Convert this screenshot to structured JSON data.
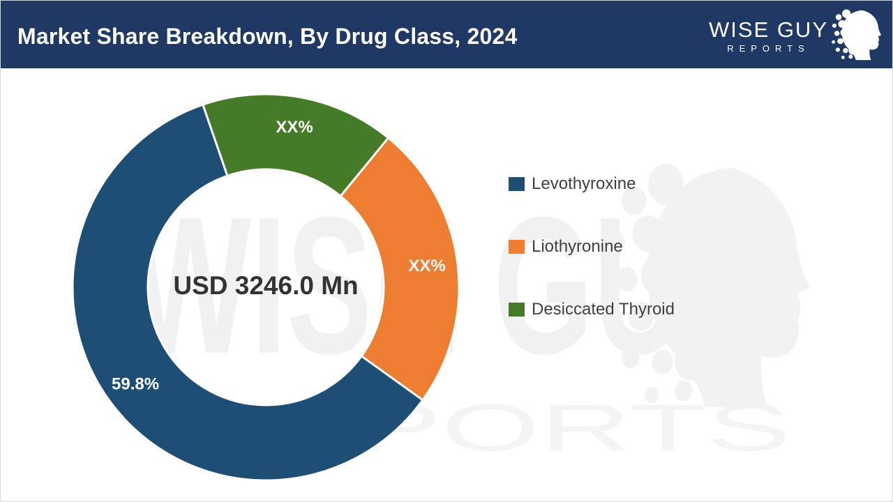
{
  "header": {
    "title": "Market Share Breakdown, By Drug Class, 2024",
    "logo": {
      "line1": "WISE GUY",
      "line2": "REPORTS"
    }
  },
  "watermark": {
    "line1": "WISE GUY",
    "line2": "REPORTS"
  },
  "chart_data": {
    "type": "pie",
    "subtype": "donut",
    "title": "Market Share Breakdown, By Drug Class, 2024",
    "center_label": "USD 3246.0 Mn",
    "categories": [
      "Levothyroxine",
      "Liothyronine",
      "Desiccated Thyroid"
    ],
    "series": [
      {
        "name": "Levothyroxine",
        "value": 59.8,
        "label": "59.8%",
        "color": "#1F4E74"
      },
      {
        "name": "Liothyronine",
        "value": 24.0,
        "label": "XX%",
        "color": "#ED7D31"
      },
      {
        "name": "Desiccated Thyroid",
        "value": 16.2,
        "label": "XX%",
        "color": "#457B26"
      }
    ],
    "start_angle_deg": 109,
    "direction": "ccw",
    "inner_radius_ratio": 0.61,
    "legend_position": "right",
    "label_color": "#ffffff"
  },
  "colors": {
    "header_bg": "#1F3864",
    "page_bg": "#FFFFFF",
    "watermark_text": "#F1F1F1",
    "watermark_reports": "#F4F4F4",
    "watermark_head": "#F2F2F2",
    "center_text": "#333333",
    "legend_text": "#3F3F3F",
    "border": "#D8D8D8"
  }
}
